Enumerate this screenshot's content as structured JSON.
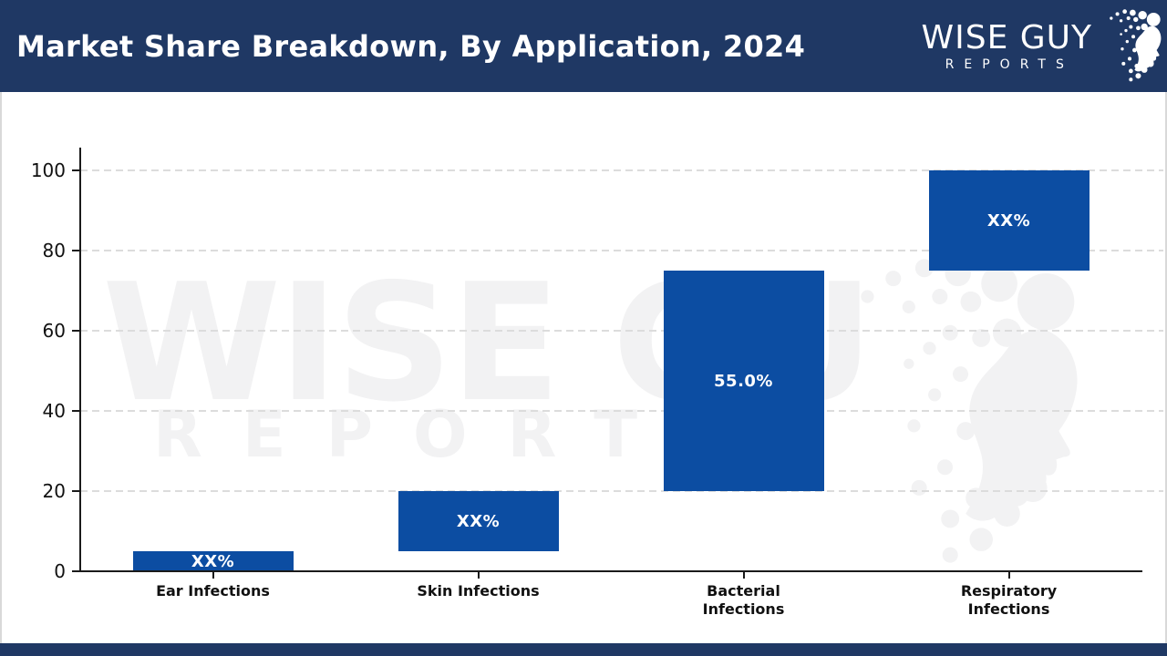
{
  "header": {
    "title": "Market Share Breakdown, By Application, 2024",
    "logo": {
      "line1": "WISE GUY",
      "line2": "REPORTS"
    }
  },
  "watermark": {
    "line1": "WISE GU",
    "line2": "REPORTS"
  },
  "colors": {
    "header_bg": "#1f3864",
    "footer_bg": "#1f3864",
    "bar": "#0c4da2",
    "axis": "#1a1a1a",
    "grid": "#dcdcdc",
    "watermark": "#f2f2f3",
    "bar_label": "#ffffff",
    "title_text": "#ffffff"
  },
  "chart_data": {
    "type": "bar",
    "subtype": "floating-waterfall",
    "title": "Market Share Breakdown, By Application, 2024",
    "categories": [
      "Ear Infections",
      "Skin Infections",
      "Bacterial\nInfections",
      "Respiratory\nInfections"
    ],
    "segments": [
      {
        "category": "Ear Infections",
        "from": 0,
        "to": 5,
        "label": "XX%"
      },
      {
        "category": "Skin Infections",
        "from": 5,
        "to": 20,
        "label": "XX%"
      },
      {
        "category": "Bacterial Infections",
        "from": 20,
        "to": 75,
        "label": "55.0%"
      },
      {
        "category": "Respiratory Infections",
        "from": 75,
        "to": 100,
        "label": "XX%"
      }
    ],
    "xlabel": "",
    "ylabel": "",
    "ylim": [
      0,
      100
    ],
    "yticks": [
      0,
      20,
      40,
      60,
      80,
      100
    ],
    "grid": "horizontal-dashed",
    "legend": "none"
  }
}
